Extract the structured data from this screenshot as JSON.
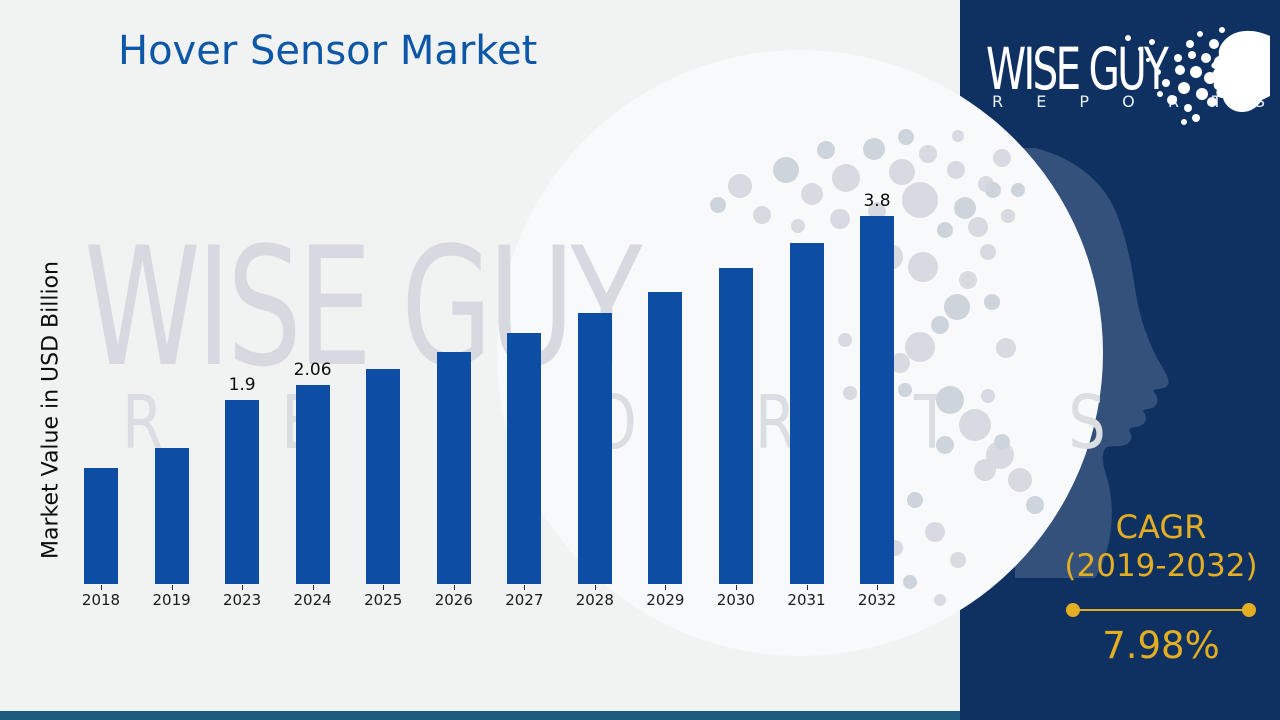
{
  "page": {
    "background_color": "#f1f2f2",
    "title": "Hover Sensor Market",
    "title_color": "#0d57a8"
  },
  "chart_data": {
    "type": "bar",
    "title": "Hover Sensor Market",
    "xlabel": "",
    "ylabel": "Market Value in USD Billion",
    "categories": [
      "2018",
      "2019",
      "2023",
      "2024",
      "2025",
      "2026",
      "2027",
      "2028",
      "2029",
      "2030",
      "2031",
      "2032"
    ],
    "values": [
      1.2,
      1.4,
      1.9,
      2.06,
      2.22,
      2.4,
      2.59,
      2.8,
      3.02,
      3.26,
      3.52,
      3.8
    ],
    "data_labels": {
      "2023": "1.9",
      "2024": "2.06",
      "2032": "3.8"
    },
    "bar_color": "#0d4da4",
    "ylim": [
      0,
      4.0
    ],
    "grid": false,
    "legend": "none",
    "value_unit": "USD Billion"
  },
  "watermark": {
    "line1": "WISE GUY",
    "line2": "REPORTS",
    "color": "#d6dae0"
  },
  "brand": {
    "wordmark": "WISE GUY",
    "subtext": "REPORTS",
    "panel_color": "#0f3162",
    "icons": {
      "face": "face-profile-icon",
      "dots": "dot-spray-icon"
    }
  },
  "cagr": {
    "label": "CAGR",
    "range": "(2019-2032)",
    "value": "7.98%",
    "accent_color": "#e3ae21"
  },
  "footer": {
    "strip_color": "#1d5c7e"
  }
}
